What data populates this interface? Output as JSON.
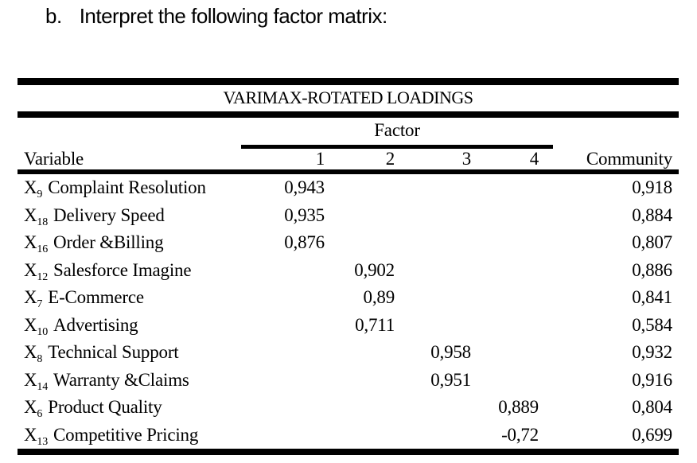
{
  "heading": {
    "marker": "b.",
    "text": "Interpret the following factor matrix:"
  },
  "table": {
    "title": "VARIMAX-ROTATED LOADINGS",
    "factor_group_label": "Factor",
    "columns": {
      "variable": "Variable",
      "factor1": "1",
      "factor2": "2",
      "factor3": "3",
      "factor4": "4",
      "community": "Community"
    },
    "rows": [
      {
        "var": "X",
        "sub": "9",
        "label": "Complaint Resolution",
        "f1": "0,943",
        "f2": "",
        "f3": "",
        "f4": "",
        "community": "0,918"
      },
      {
        "var": "X",
        "sub": "18",
        "label": "Delivery Speed",
        "f1": "0,935",
        "f2": "",
        "f3": "",
        "f4": "",
        "community": "0,884"
      },
      {
        "var": "X",
        "sub": "16",
        "label": "Order &Billing",
        "f1": "0,876",
        "f2": "",
        "f3": "",
        "f4": "",
        "community": "0,807"
      },
      {
        "var": "X",
        "sub": "12",
        "label": "Salesforce Imagine",
        "f1": "",
        "f2": "0,902",
        "f3": "",
        "f4": "",
        "community": "0,886"
      },
      {
        "var": "X",
        "sub": "7",
        "label": "E-Commerce",
        "f1": "",
        "f2": "0,89",
        "f3": "",
        "f4": "",
        "community": "0,841"
      },
      {
        "var": "X",
        "sub": "10",
        "label": "Advertising",
        "f1": "",
        "f2": "0,711",
        "f3": "",
        "f4": "",
        "community": "0,584"
      },
      {
        "var": "X",
        "sub": "8",
        "label": "Technical Support",
        "f1": "",
        "f2": "",
        "f3": "0,958",
        "f4": "",
        "community": "0,932"
      },
      {
        "var": "X",
        "sub": "14",
        "label": "Warranty &Claims",
        "f1": "",
        "f2": "",
        "f3": "0,951",
        "f4": "",
        "community": "0,916"
      },
      {
        "var": "X",
        "sub": "6",
        "label": "Product Quality",
        "f1": "",
        "f2": "",
        "f3": "",
        "f4": "0,889",
        "community": "0,804"
      },
      {
        "var": "X",
        "sub": "13",
        "label": "Competitive Pricing",
        "f1": "",
        "f2": "",
        "f3": "",
        "f4": "-0,72",
        "community": "0,699"
      }
    ]
  }
}
